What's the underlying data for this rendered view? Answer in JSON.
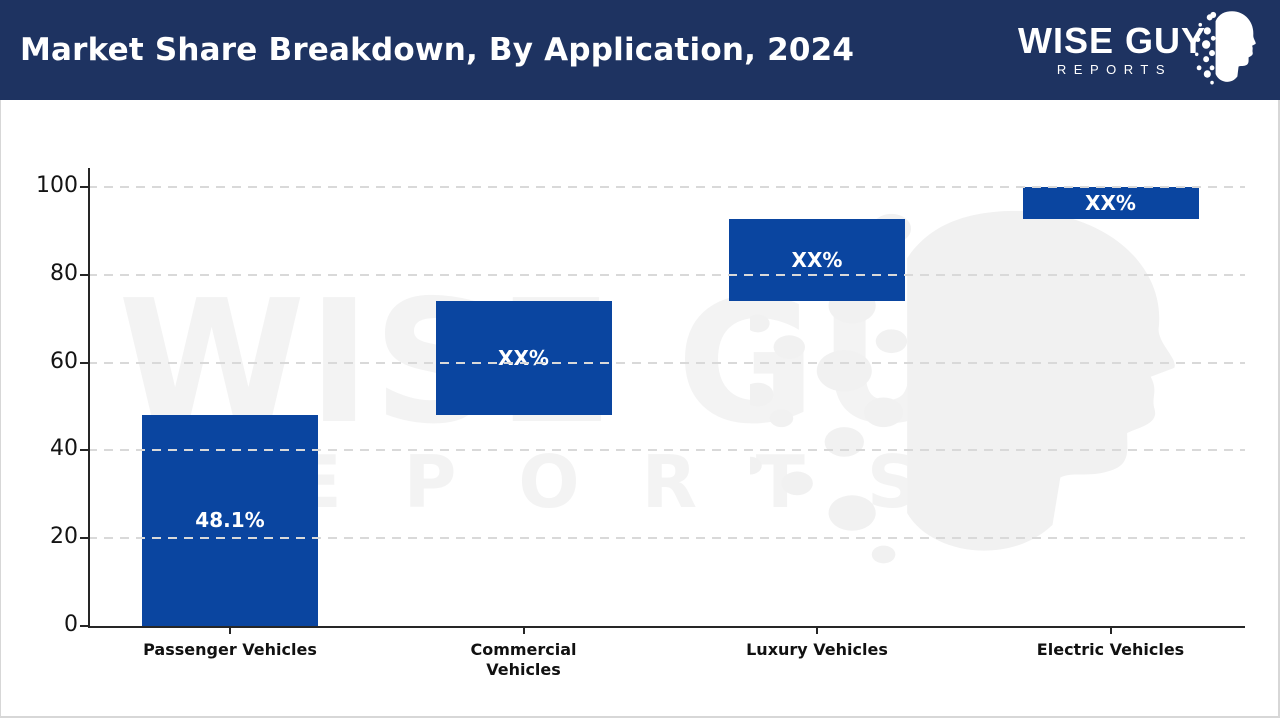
{
  "header": {
    "title": "Market Share Breakdown, By Application, 2024",
    "logo": {
      "name": "WISE GUY",
      "sub": "REPORTS"
    }
  },
  "watermark": {
    "name": "WISE GUY",
    "sub": "REPORTS"
  },
  "chart_data": {
    "type": "bar",
    "subtype": "waterfall",
    "title": "Market Share Breakdown, By Application, 2024",
    "categories": [
      "Passenger Vehicles",
      "Commercial\nVehicles",
      "Luxury Vehicles",
      "Electric Vehicles"
    ],
    "segments": [
      {
        "category": "Passenger Vehicles",
        "start": 0,
        "end": 48.1,
        "label": "48.1%"
      },
      {
        "category": "Commercial Vehicles",
        "start": 48.1,
        "end": 74.1,
        "label": "XX%"
      },
      {
        "category": "Luxury Vehicles",
        "start": 74.1,
        "end": 92.6,
        "label": "XX%"
      },
      {
        "category": "Electric Vehicles",
        "start": 92.6,
        "end": 100,
        "label": "XX%"
      }
    ],
    "yticks": [
      0,
      20,
      40,
      60,
      80,
      100
    ],
    "ylim": [
      0,
      100
    ],
    "grid": "horizontal-dashed",
    "legend": "none",
    "bar_color": "#0a45a0",
    "colors": {
      "header_bg": "#1e3361",
      "grid": "#d9d9d9",
      "axis": "#262626",
      "value_label": "#ffffff",
      "watermark": "#f3f3f3"
    }
  }
}
